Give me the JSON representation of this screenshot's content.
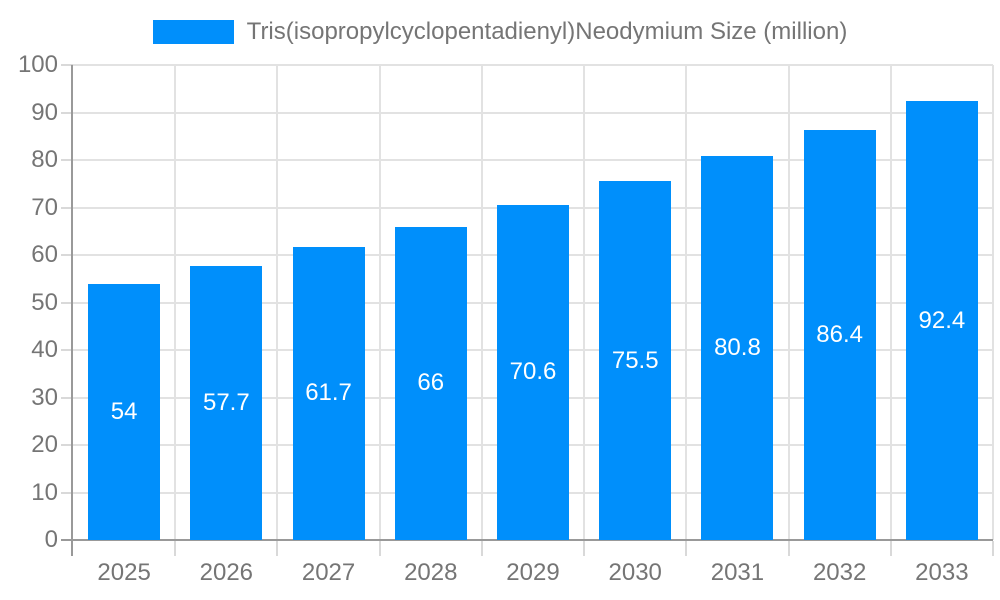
{
  "legend": {
    "position": "top",
    "items": [
      {
        "label": "Tris(isopropylcyclopentadienyl)Neodymium Size (million)",
        "color": "#008FFB"
      }
    ]
  },
  "chart_data": {
    "type": "bar",
    "title": "Tris(isopropylcyclopentadienyl)Neodymium Size (million)",
    "series": [
      {
        "name": "Tris(isopropylcyclopentadienyl)Neodymium Size (million)",
        "values": [
          54,
          57.7,
          61.7,
          66,
          70.6,
          75.5,
          80.8,
          86.4,
          92.4
        ]
      }
    ],
    "categories": [
      "2025",
      "2026",
      "2027",
      "2028",
      "2029",
      "2030",
      "2031",
      "2032",
      "2033"
    ],
    "value_labels": [
      "54",
      "57.7",
      "61.7",
      "66",
      "70.6",
      "75.5",
      "80.8",
      "86.4",
      "92.4"
    ],
    "xlabel": "",
    "ylabel": "",
    "ylim": [
      0,
      100
    ],
    "ytick_step": 10,
    "ytick_labels": [
      "0",
      "10",
      "20",
      "30",
      "40",
      "50",
      "60",
      "70",
      "80",
      "90",
      "100"
    ],
    "grid": true,
    "legend_position": "top",
    "colors": {
      "bar": "#008FFB",
      "value_label": "#ffffff",
      "axis_label": "#757575",
      "title": "#757575",
      "grid_line": "#e2e2e2",
      "tick": "#d9d9d9",
      "axis_line": "#999999",
      "background": "#ffffff"
    }
  }
}
